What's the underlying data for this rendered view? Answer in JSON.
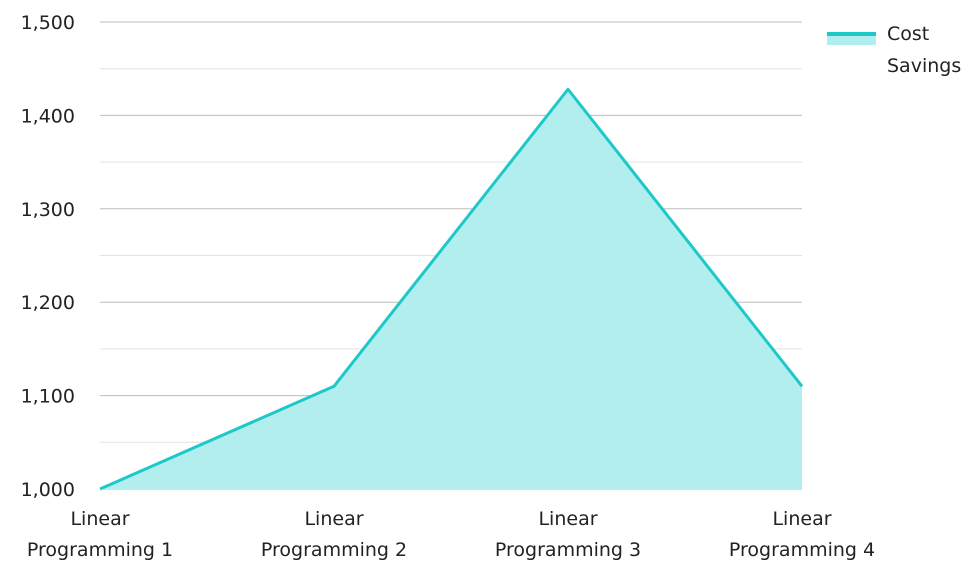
{
  "chart_data": {
    "type": "area",
    "categories": [
      [
        "Linear",
        "Programming 1"
      ],
      [
        "Linear",
        "Programming 2"
      ],
      [
        "Linear",
        "Programming 3"
      ],
      [
        "Linear",
        "Programming 4"
      ]
    ],
    "series": [
      {
        "name": [
          "Cost",
          "Savings"
        ],
        "values": [
          1000,
          1110,
          1428,
          1110
        ],
        "line_color": "#1ec8c8",
        "fill_color": "#b2eeee"
      }
    ],
    "y_ticks": [
      "1,000",
      "1,100",
      "1,200",
      "1,300",
      "1,400",
      "1,500"
    ],
    "y_tick_values": [
      1000,
      1100,
      1200,
      1300,
      1400,
      1500
    ],
    "ylim": [
      1000,
      1500
    ],
    "grid": true,
    "minor_grid": true,
    "legend_position": "top-right",
    "grid_color": "#bdbdbd",
    "minor_grid_color": "#e2e2e2"
  }
}
